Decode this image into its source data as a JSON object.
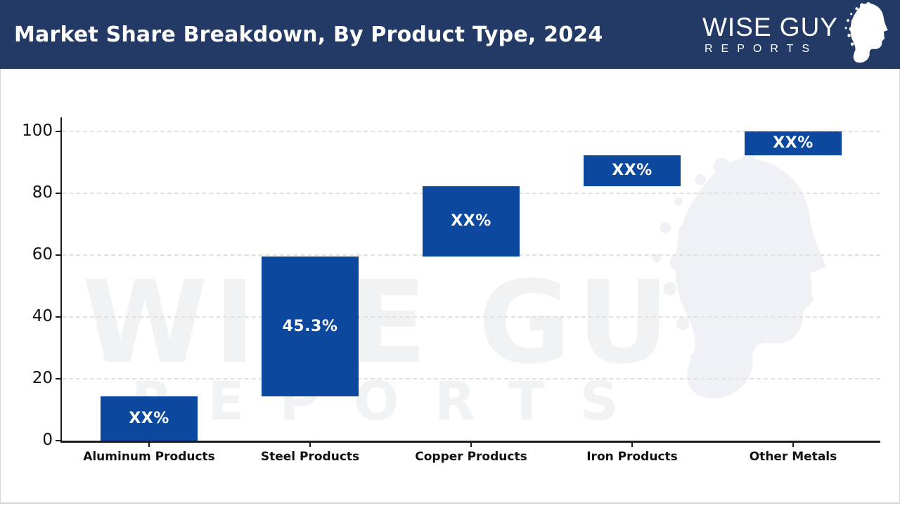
{
  "header": {
    "title": "Market Share Breakdown, By Product Type, 2024",
    "bg_color": "#233a66",
    "logo": {
      "line1": "WISE GUY",
      "line2": "REPORTS"
    }
  },
  "watermark": {
    "line1": "WISE GUY",
    "line2": "REPORTS"
  },
  "chart_data": {
    "type": "bar",
    "subtype": "waterfall",
    "title": "Market Share Breakdown, By Product Type, 2024",
    "xlabel": "",
    "ylabel": "",
    "categories": [
      "Aluminum Products",
      "Steel Products",
      "Copper Products",
      "Iron Products",
      "Other Metals"
    ],
    "bars": [
      {
        "category": "Aluminum Products",
        "start": 0,
        "end": 14.3,
        "value": 14.3,
        "label": "XX%"
      },
      {
        "category": "Steel Products",
        "start": 14.3,
        "end": 59.6,
        "value": 45.3,
        "label": "45.3%"
      },
      {
        "category": "Copper Products",
        "start": 59.6,
        "end": 82.3,
        "value": 22.7,
        "label": "XX%"
      },
      {
        "category": "Iron Products",
        "start": 82.3,
        "end": 92.3,
        "value": 10.0,
        "label": "XX%"
      },
      {
        "category": "Other Metals",
        "start": 92.3,
        "end": 100.0,
        "value": 7.7,
        "label": "XX%"
      }
    ],
    "y_ticks": [
      0,
      20,
      40,
      60,
      80,
      100
    ],
    "ylim": [
      0,
      104
    ],
    "bar_color": "#0b489e",
    "grid": "horizontal dashed, light gray",
    "legend": "none"
  }
}
